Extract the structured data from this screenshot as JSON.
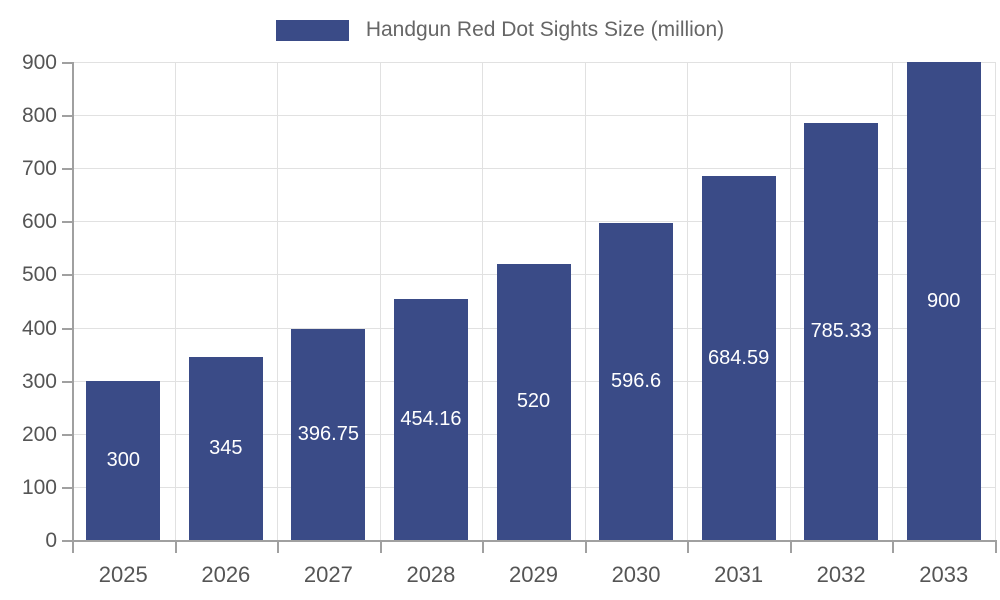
{
  "legend": {
    "label": "Handgun Red Dot Sights Size (million)"
  },
  "colors": {
    "bar": "#3A4B87",
    "grid": "#E1E1E1",
    "axis": "#A0A0A0",
    "tick_label": "#555555",
    "legend_text": "#666666",
    "bar_label": "#FFFFFF"
  },
  "chart_data": {
    "type": "bar",
    "title": "Handgun Red Dot Sights Size (million)",
    "series": [
      {
        "name": "Handgun Red Dot Sights Size (million)",
        "values": [
          300,
          345,
          396.75,
          454.16,
          520,
          596.6,
          684.59,
          785.33,
          900
        ]
      }
    ],
    "categories": [
      "2025",
      "2026",
      "2027",
      "2028",
      "2029",
      "2030",
      "2031",
      "2032",
      "2033"
    ],
    "data_labels": [
      "300",
      "345",
      "396.75",
      "454.16",
      "520",
      "596.6",
      "684.59",
      "785.33",
      "900"
    ],
    "xlabel": "",
    "ylabel": "",
    "ylim": [
      0,
      900
    ],
    "ytick_step": 100,
    "ytick_labels": [
      "0",
      "100",
      "200",
      "300",
      "400",
      "500",
      "600",
      "700",
      "800",
      "900"
    ],
    "grid": true,
    "legend_position": "top"
  }
}
